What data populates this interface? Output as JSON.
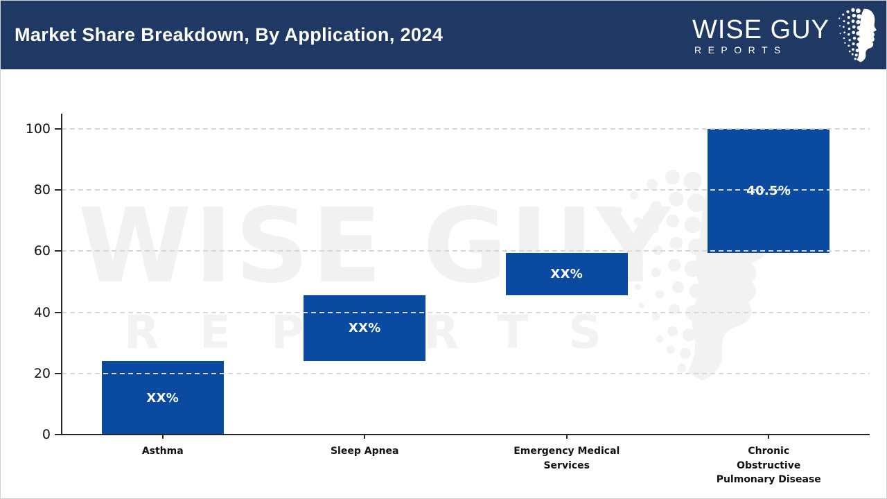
{
  "header": {
    "title": "Market Share Breakdown, By Application, 2024",
    "logo": {
      "name": "WISE GUY",
      "tagline": "REPORTS"
    }
  },
  "watermark": {
    "line1": "WISE GUY",
    "line2": "REPORTS"
  },
  "chart_data": {
    "type": "bar",
    "subtype": "waterfall",
    "title": "Market Share Breakdown, By Application, 2024",
    "xlabel": "",
    "ylabel": "",
    "ylim": [
      0,
      105
    ],
    "yticks": [
      0,
      20,
      40,
      60,
      80,
      100
    ],
    "grid": "horizontal-dashed",
    "legend": "none",
    "bar_color": "#0a4aa0",
    "categories": [
      "Asthma",
      "Sleep Apnea",
      "Emergency Medical Services",
      "Chronic Obstructive Pulmonary Disease"
    ],
    "category_lines": [
      [
        "Asthma"
      ],
      [
        "Sleep Apnea"
      ],
      [
        "Emergency Medical",
        "Services"
      ],
      [
        "Chronic",
        "Obstructive",
        "Pulmonary Disease"
      ]
    ],
    "bars": [
      {
        "category": "Asthma",
        "start": 0,
        "end": 24,
        "label": "XX%"
      },
      {
        "category": "Sleep Apnea",
        "start": 24,
        "end": 45.5,
        "label": "XX%"
      },
      {
        "category": "Emergency Medical Services",
        "start": 45.5,
        "end": 59.5,
        "label": "XX%"
      },
      {
        "category": "Chronic Obstructive Pulmonary Disease",
        "start": 59.5,
        "end": 100,
        "label": "40.5%"
      }
    ]
  }
}
